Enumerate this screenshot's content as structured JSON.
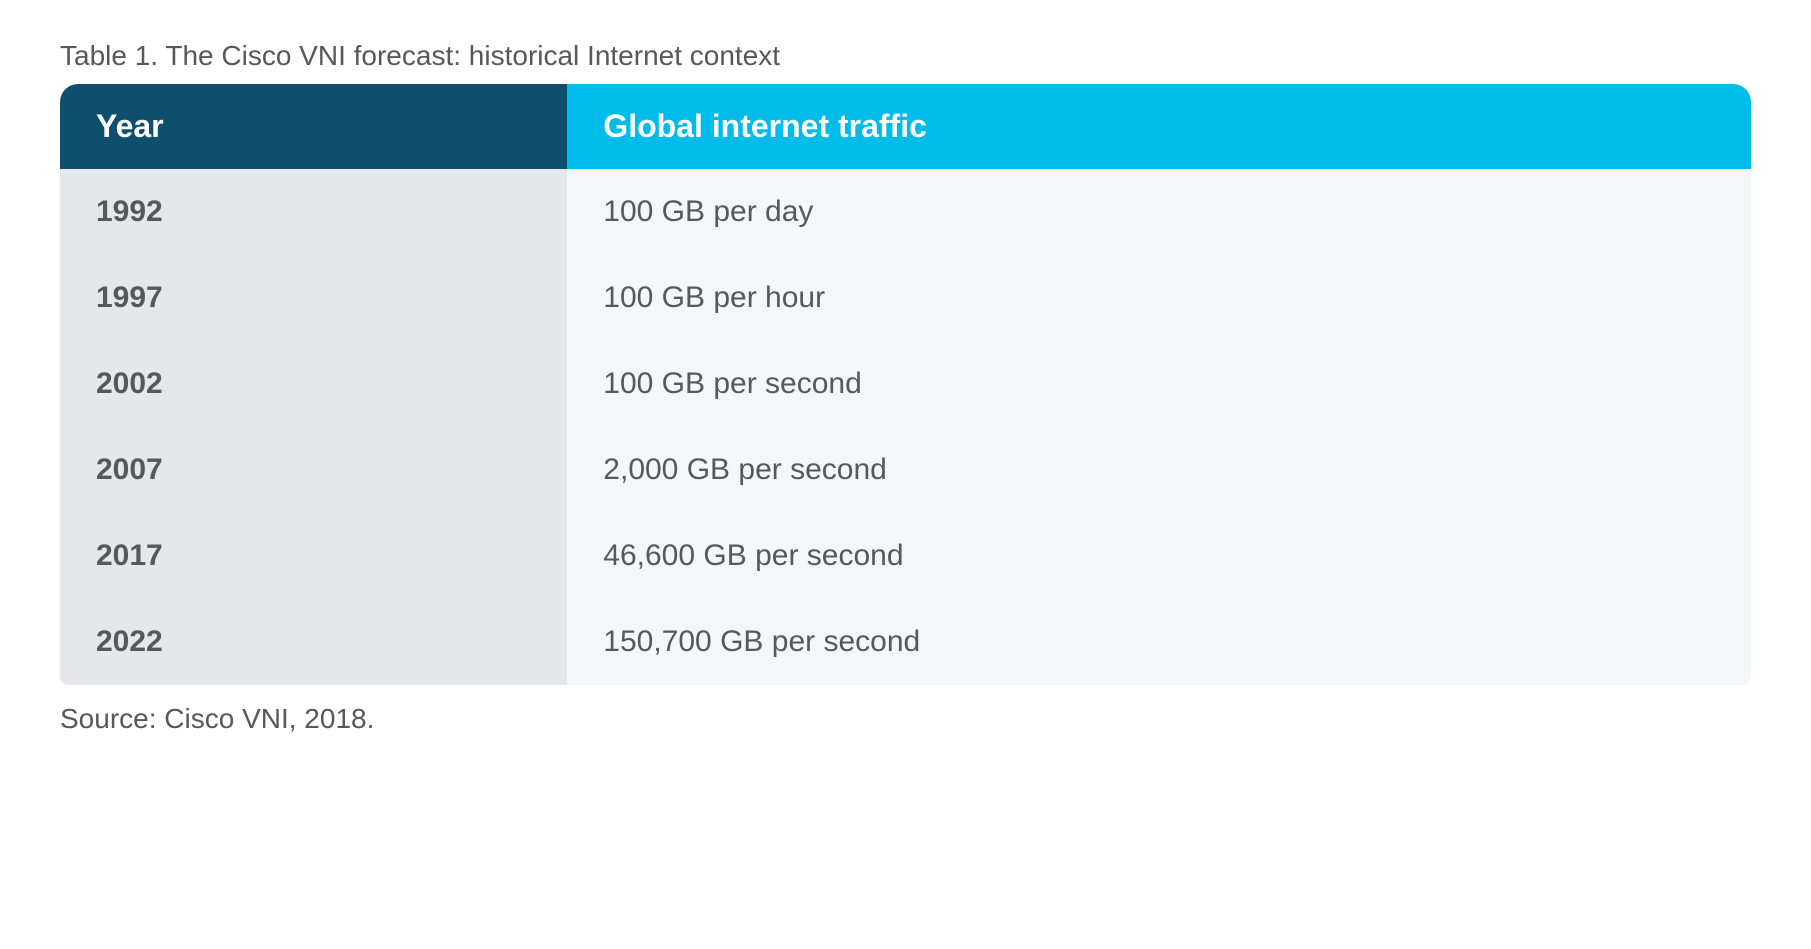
{
  "caption": {
    "label": "Table 1.",
    "text": "The Cisco VNI forecast: historical Internet context"
  },
  "table": {
    "type": "table",
    "header": {
      "year": "Year",
      "traffic": "Global internet traffic",
      "year_bg": "#0d4f6c",
      "traffic_bg": "#00bceb",
      "text_color": "#ffffff",
      "fontsize": 32,
      "fontweight": 700
    },
    "body": {
      "year_bg": "#e6e7e8",
      "traffic_bg": "#f5f6f7",
      "text_color": "#58585b",
      "year_fontweight": 700,
      "traffic_fontweight": 400,
      "fontsize": 30
    },
    "column_widths_pct": [
      30,
      70
    ],
    "rows": [
      {
        "year": "1992",
        "traffic": "100 GB per day"
      },
      {
        "year": "1997",
        "traffic": "100 GB per hour"
      },
      {
        "year": "2002",
        "traffic": "100 GB per second"
      },
      {
        "year": "2007",
        "traffic": "2,000 GB per second"
      },
      {
        "year": "2017",
        "traffic": "46,600 GB per second"
      },
      {
        "year": "2022",
        "traffic": "150,700 GB per second"
      }
    ],
    "border_radius": 18,
    "divider_color": "#ffffff",
    "divider_width": 4
  },
  "source": "Source: Cisco VNI, 2018."
}
